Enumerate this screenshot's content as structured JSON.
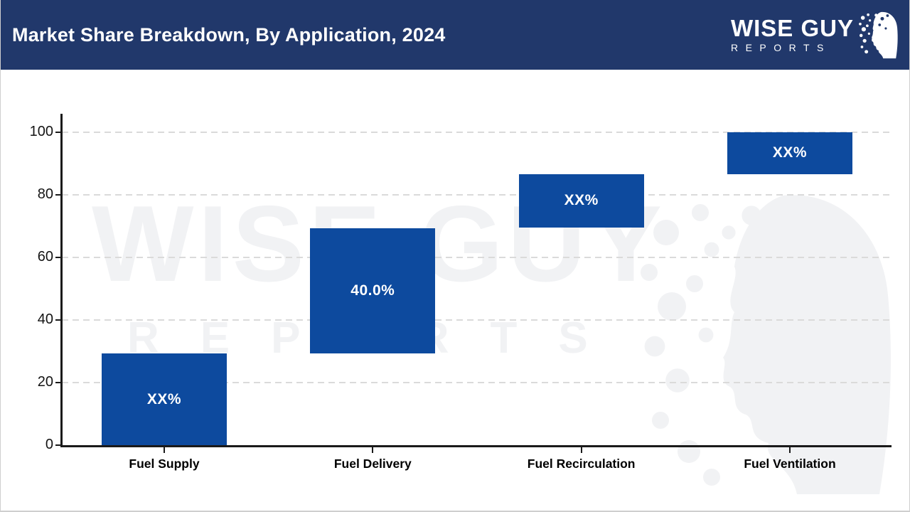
{
  "header": {
    "title": "Market Share Breakdown, By Application, 2024",
    "logo": {
      "line1": "WISE GUY",
      "line2": "REPORTS"
    }
  },
  "watermark": {
    "line1": "WISE GUY",
    "line2": "REPORTS"
  },
  "colors": {
    "header_bg": "#21386b",
    "bar": "#0d4a9e",
    "axis": "#1a1a1a",
    "grid": "#dadada",
    "watermark": "#f1f2f4",
    "label_text": "#ffffff"
  },
  "chart_data": {
    "type": "bar",
    "subtype": "floating-waterfall",
    "title": "Market Share Breakdown, By Application, 2024",
    "xlabel": "",
    "ylabel": "",
    "categories": [
      "Fuel Supply",
      "Fuel Delivery",
      "Fuel Recirculation",
      "Fuel Ventilation"
    ],
    "segments": [
      {
        "category": "Fuel Supply",
        "from": 0,
        "to": 29.3,
        "label": "XX%"
      },
      {
        "category": "Fuel Delivery",
        "from": 29.4,
        "to": 69.4,
        "label": "40.0%"
      },
      {
        "category": "Fuel Recirculation",
        "from": 69.6,
        "to": 86.6,
        "label": "XX%"
      },
      {
        "category": "Fuel Ventilation",
        "from": 86.7,
        "to": 100,
        "label": "XX%"
      }
    ],
    "y_ticks": [
      0,
      20,
      40,
      60,
      80,
      100
    ],
    "ylim": [
      0,
      105
    ],
    "grid": "horizontal-dashed",
    "legend": "none"
  }
}
